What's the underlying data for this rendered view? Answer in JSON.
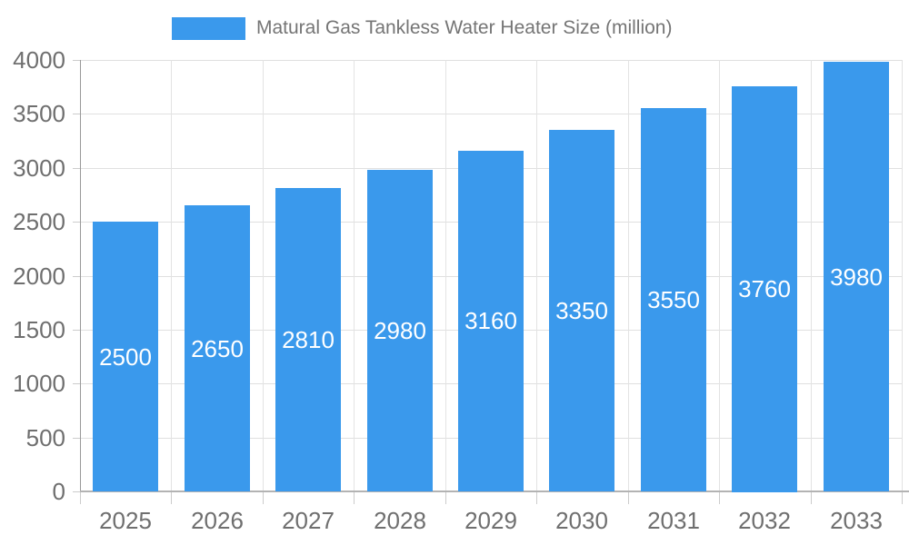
{
  "legend": {
    "label": "Matural Gas Tankless Water Heater Size (million)"
  },
  "chart_data": {
    "type": "bar",
    "title": "Matural Gas Tankless Water Heater Size (million)",
    "categories": [
      "2025",
      "2026",
      "2027",
      "2028",
      "2029",
      "2030",
      "2031",
      "2032",
      "2033"
    ],
    "values": [
      2500,
      2650,
      2810,
      2980,
      3160,
      3350,
      3550,
      3760,
      3980
    ],
    "xlabel": "",
    "ylabel": "",
    "ylim": [
      0,
      4000
    ],
    "ytick_step": 500,
    "yticks": [
      0,
      500,
      1000,
      1500,
      2000,
      2500,
      3000,
      3500,
      4000
    ],
    "grid": true,
    "legend_position": "top",
    "bar_color": "#3a99ec",
    "bar_label_color": "#ffffff",
    "axis_text_color": "#6f6f6f"
  }
}
